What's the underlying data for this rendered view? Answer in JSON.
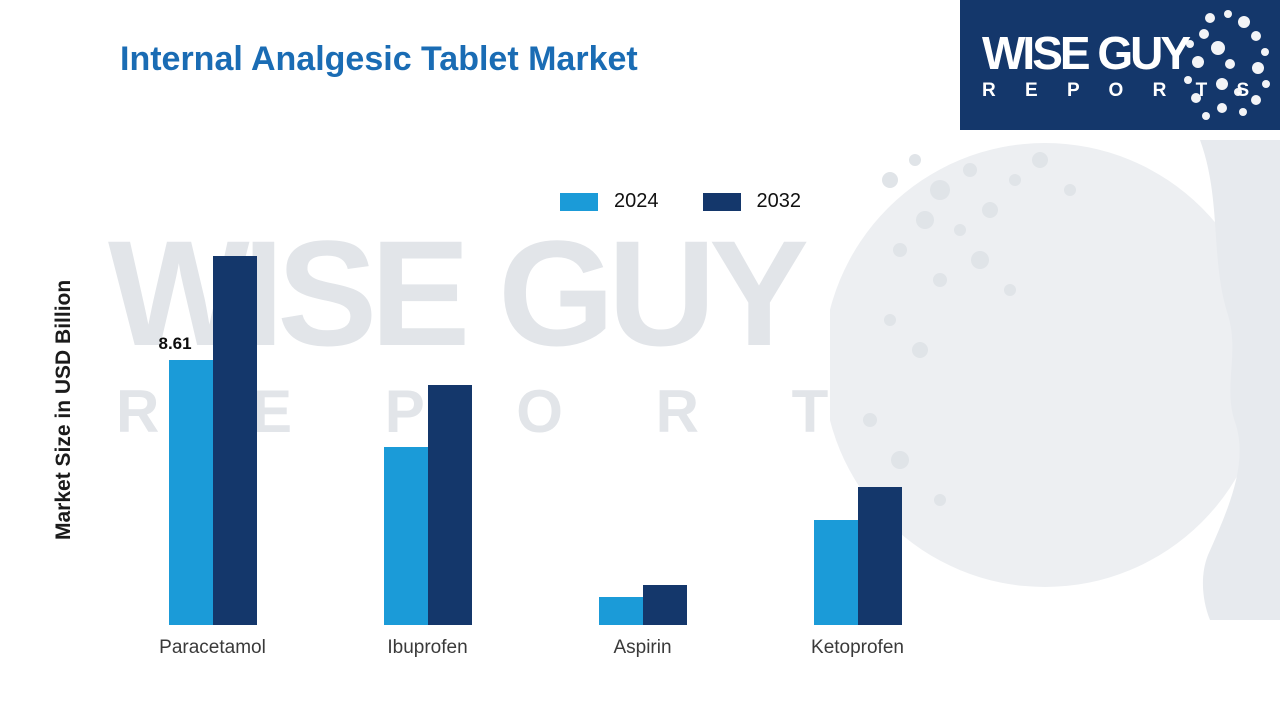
{
  "page": {
    "title": "Internal Analgesic Tablet Market",
    "watermark": {
      "line1": "WISE GUY",
      "line2": "R E P O R T S"
    },
    "logo": {
      "line1": "WISE GUY",
      "line2": "R E P O R T S"
    },
    "colors": {
      "title": "#1a6cb4",
      "logo_bg": "#14376b"
    }
  },
  "legend": [
    {
      "label": "2024",
      "color": "#1b9bd8"
    },
    {
      "label": "2032",
      "color": "#14376b"
    }
  ],
  "chart_data": {
    "type": "bar",
    "title": "Internal Analgesic Tablet Market",
    "xlabel": "",
    "ylabel": "Market Size in USD Billion",
    "categories": [
      "Paracetamol",
      "Ibuprofen",
      "Aspirin",
      "Ketoprofen"
    ],
    "series": [
      {
        "name": "2024",
        "color": "#1b9bd8",
        "values": [
          8.61,
          5.8,
          0.9,
          3.4
        ],
        "labels": [
          "8.61",
          null,
          null,
          null
        ]
      },
      {
        "name": "2032",
        "color": "#14376b",
        "values": [
          12.0,
          7.8,
          1.3,
          4.5
        ],
        "labels": [
          null,
          null,
          null,
          null
        ]
      }
    ],
    "ylim": [
      0,
      13
    ],
    "grid": false,
    "legend_position": "top"
  }
}
